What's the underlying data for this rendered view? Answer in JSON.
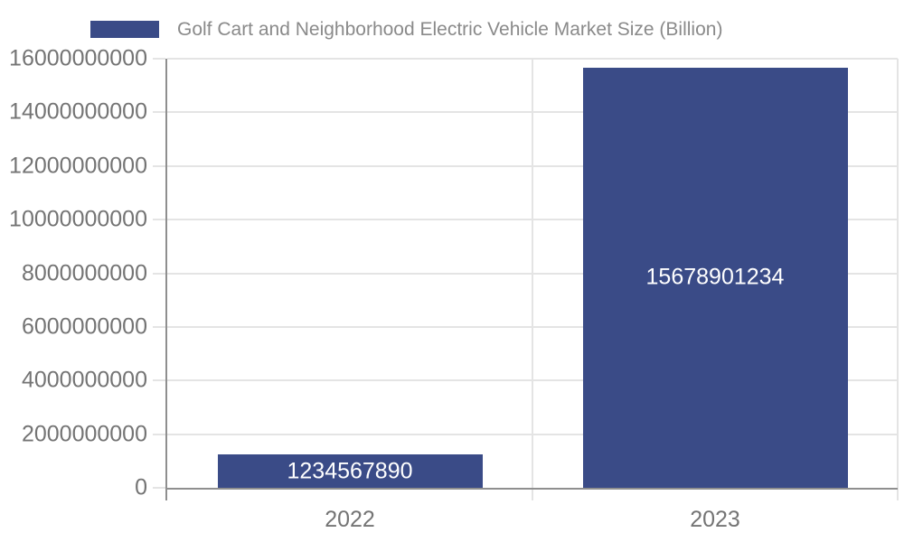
{
  "chart_data": {
    "type": "bar",
    "title": "Golf Cart and Neighborhood Electric Vehicle Market Size (Billion)",
    "legend": {
      "label": "Golf Cart and Neighborhood Electric Vehicle Market Size (Billion)",
      "position": "top"
    },
    "categories": [
      "2022",
      "2023"
    ],
    "series": [
      {
        "name": "Golf Cart and Neighborhood Electric Vehicle Market Size (Billion)",
        "values": [
          1234567890,
          15678901234
        ],
        "value_labels": [
          "1234567890",
          "15678901234"
        ]
      }
    ],
    "xlabel": "",
    "ylabel": "",
    "ylim": [
      0,
      16000000000
    ],
    "ytick_step": 2000000000,
    "yticks": [
      "0",
      "2000000000",
      "4000000000",
      "6000000000",
      "8000000000",
      "10000000000",
      "12000000000",
      "14000000000",
      "16000000000"
    ],
    "grid": true,
    "colors": {
      "bar": "#3a4b87",
      "title_text": "#8a8a8a",
      "tick_text": "#747474",
      "axis_line": "#8f8f8f",
      "grid_line": "#e4e4e4",
      "bar_label_text": "#ffffff",
      "background": "#ffffff"
    }
  }
}
